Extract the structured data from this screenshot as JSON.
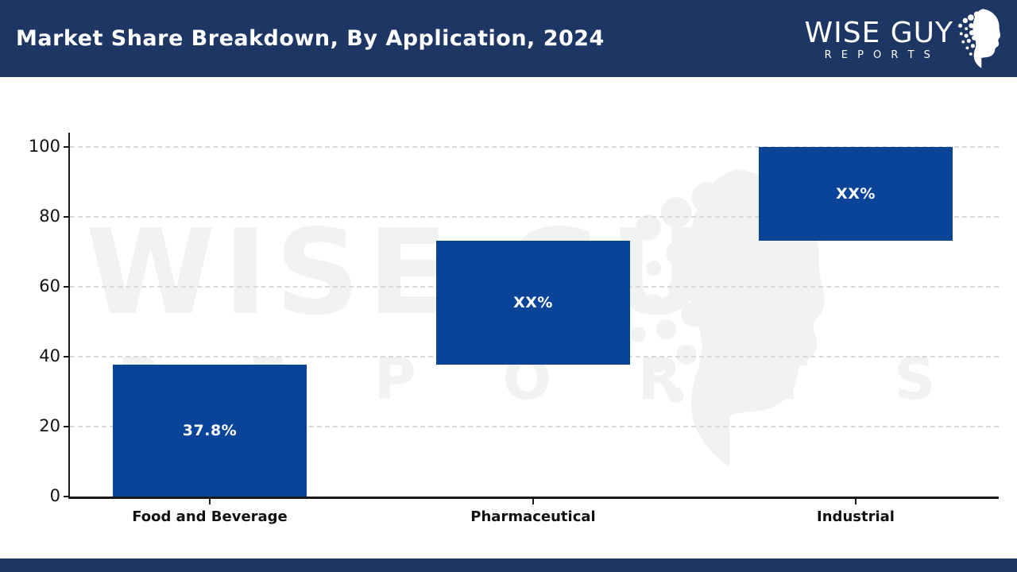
{
  "header": {
    "title": "Market Share Breakdown, By Application, 2024",
    "logo": {
      "line1": "WISE GUY",
      "line2": "R E P O R T S",
      "icon": "dotted-head-icon"
    }
  },
  "watermark": {
    "line1": "WISE GUY",
    "line2": "R E P O R T S",
    "icon": "dotted-head-watermark-icon"
  },
  "chart_data": {
    "type": "bar",
    "subtype": "stacked-waterfall",
    "title": "Market Share Breakdown, By Application, 2024",
    "categories": [
      "Food and Beverage",
      "Pharmaceutical",
      "Industrial"
    ],
    "segments": [
      {
        "category": "Food and Beverage",
        "start": 0,
        "end": 37.8,
        "label": "37.8%"
      },
      {
        "category": "Pharmaceutical",
        "start": 37.8,
        "end": 73.1,
        "label": "XX%"
      },
      {
        "category": "Industrial",
        "start": 73.1,
        "end": 100,
        "label": "XX%"
      }
    ],
    "yticks": [
      0,
      20,
      40,
      60,
      80,
      100
    ],
    "ylim": [
      0,
      104
    ],
    "xlabel": "",
    "ylabel": "",
    "grid": "horizontal-dashed",
    "legend": "none"
  },
  "colors": {
    "header_bg": "#1e3663",
    "footer_bg": "#1e3663",
    "bar": "#0a4499",
    "bar_label": "#ffffff",
    "grid": "#d9d9d9",
    "axis": "#1a1a1a",
    "tick_label": "#111111",
    "watermark": "#f2f2f2",
    "chart_bg": "#ffffff"
  }
}
